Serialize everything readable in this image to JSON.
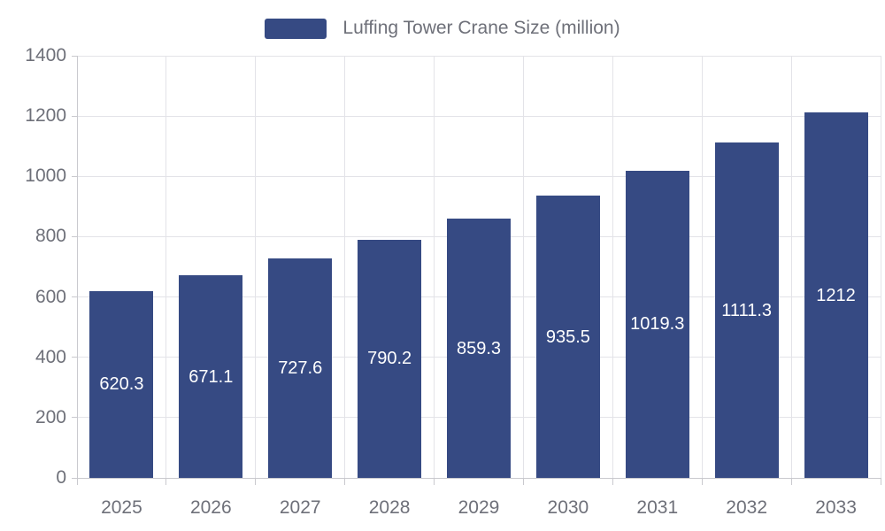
{
  "legend": {
    "swatch_color": "#364a83"
  },
  "chart_data": {
    "type": "bar",
    "title": "",
    "series_name": "Luffing Tower Crane Size (million)",
    "categories": [
      "2025",
      "2026",
      "2027",
      "2028",
      "2029",
      "2030",
      "2031",
      "2032",
      "2033"
    ],
    "values": [
      620.3,
      671.1,
      727.6,
      790.2,
      859.3,
      935.5,
      1019.3,
      1111.3,
      1212
    ],
    "xlabel": "",
    "ylabel": "",
    "ylim": [
      0,
      1400
    ],
    "ytick_step": 200,
    "grid": true,
    "legend_position": "top",
    "bar_color": "#364a83",
    "value_label_color": "#ffffff",
    "axis_text_color": "#6e7079",
    "gridline_color": "#e3e3e8",
    "axis_line_color": "#c9c9ce"
  }
}
